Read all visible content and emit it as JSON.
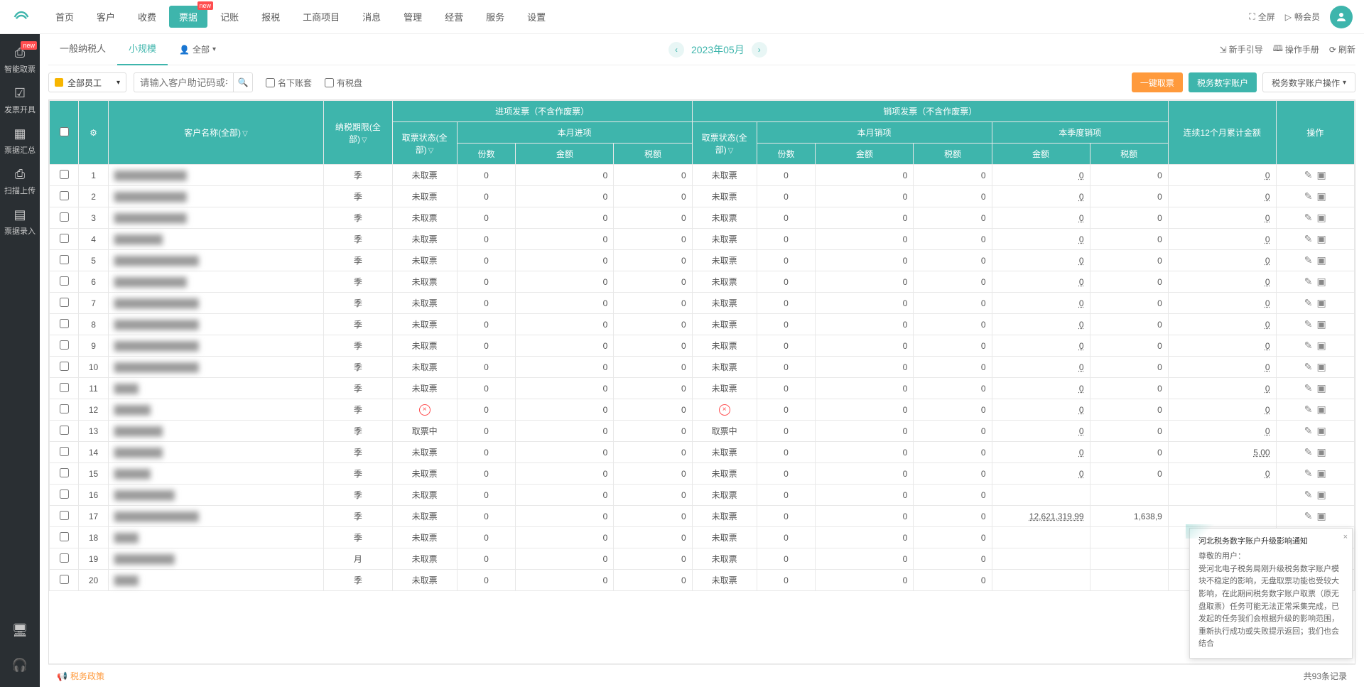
{
  "topnav": {
    "items": [
      "首页",
      "客户",
      "收费",
      "票据",
      "记账",
      "报税",
      "工商项目",
      "消息",
      "管理",
      "经营",
      "服务",
      "设置"
    ],
    "active_index": 3,
    "new_badge_indexes": [
      3
    ],
    "fullscreen": "全屏",
    "member": "畅会员"
  },
  "sidebar": {
    "items": [
      {
        "label": "智能取票",
        "icon": "⎙",
        "new": true
      },
      {
        "label": "发票开具",
        "icon": "☑"
      },
      {
        "label": "票据汇总",
        "icon": "▦"
      },
      {
        "label": "扫描上传",
        "icon": "⎙"
      },
      {
        "label": "票据录入",
        "icon": "▤"
      }
    ]
  },
  "tabs": {
    "items": [
      "一般纳税人",
      "小规模"
    ],
    "active_index": 1,
    "scope": "全部",
    "period": "2023年05月",
    "right_links": [
      "新手引导",
      "操作手册",
      "刷新"
    ]
  },
  "filters": {
    "employee_select": "全部员工",
    "search_placeholder": "请输入客户助记码或名称",
    "chk1": "名下账套",
    "chk2": "有税盘",
    "btn_fetch": "一键取票",
    "btn_digital": "税务数字账户",
    "btn_ops": "税务数字账户操作"
  },
  "table": {
    "headers": {
      "name": "客户名称(全部)",
      "period": "纳税期限(全部)",
      "in_group": "进项发票（不含作废票）",
      "out_group": "销项发票（不含作废票）",
      "in_status": "取票状态(全部)",
      "month_in": "本月进项",
      "out_status": "取票状态(全部)",
      "month_out": "本月销项",
      "quarter_out": "本季度销项",
      "acc12": "连续12个月累计金额",
      "ops": "操作",
      "count": "份数",
      "amount": "金额",
      "tax": "税额"
    },
    "rows": [
      {
        "idx": 1,
        "name": "████████████",
        "period": "季",
        "in_status": "未取票",
        "in_cnt": 0,
        "in_amt": "0",
        "in_tax": "0",
        "out_status": "未取票",
        "out_cnt": 0,
        "out_amt": "0",
        "out_tax": "0",
        "q_amt": "0",
        "q_tax": "0",
        "acc": "0"
      },
      {
        "idx": 2,
        "name": "████████████",
        "period": "季",
        "in_status": "未取票",
        "in_cnt": 0,
        "in_amt": "0",
        "in_tax": "0",
        "out_status": "未取票",
        "out_cnt": 0,
        "out_amt": "0",
        "out_tax": "0",
        "q_amt": "0",
        "q_tax": "0",
        "acc": "0"
      },
      {
        "idx": 3,
        "name": "████████████",
        "period": "季",
        "in_status": "未取票",
        "in_cnt": 0,
        "in_amt": "0",
        "in_tax": "0",
        "out_status": "未取票",
        "out_cnt": 0,
        "out_amt": "0",
        "out_tax": "0",
        "q_amt": "0",
        "q_tax": "0",
        "acc": "0"
      },
      {
        "idx": 4,
        "name": "████████",
        "period": "季",
        "in_status": "未取票",
        "in_cnt": 0,
        "in_amt": "0",
        "in_tax": "0",
        "out_status": "未取票",
        "out_cnt": 0,
        "out_amt": "0",
        "out_tax": "0",
        "q_amt": "0",
        "q_tax": "0",
        "acc": "0"
      },
      {
        "idx": 5,
        "name": "██████████████",
        "period": "季",
        "in_status": "未取票",
        "in_cnt": 0,
        "in_amt": "0",
        "in_tax": "0",
        "out_status": "未取票",
        "out_cnt": 0,
        "out_amt": "0",
        "out_tax": "0",
        "q_amt": "0",
        "q_tax": "0",
        "acc": "0"
      },
      {
        "idx": 6,
        "name": "████████████",
        "period": "季",
        "in_status": "未取票",
        "in_cnt": 0,
        "in_amt": "0",
        "in_tax": "0",
        "out_status": "未取票",
        "out_cnt": 0,
        "out_amt": "0",
        "out_tax": "0",
        "q_amt": "0",
        "q_tax": "0",
        "acc": "0"
      },
      {
        "idx": 7,
        "name": "██████████████",
        "period": "季",
        "in_status": "未取票",
        "in_cnt": 0,
        "in_amt": "0",
        "in_tax": "0",
        "out_status": "未取票",
        "out_cnt": 0,
        "out_amt": "0",
        "out_tax": "0",
        "q_amt": "0",
        "q_tax": "0",
        "acc": "0"
      },
      {
        "idx": 8,
        "name": "██████████████",
        "period": "季",
        "in_status": "未取票",
        "in_cnt": 0,
        "in_amt": "0",
        "in_tax": "0",
        "out_status": "未取票",
        "out_cnt": 0,
        "out_amt": "0",
        "out_tax": "0",
        "q_amt": "0",
        "q_tax": "0",
        "acc": "0"
      },
      {
        "idx": 9,
        "name": "██████████████",
        "period": "季",
        "in_status": "未取票",
        "in_cnt": 0,
        "in_amt": "0",
        "in_tax": "0",
        "out_status": "未取票",
        "out_cnt": 0,
        "out_amt": "0",
        "out_tax": "0",
        "q_amt": "0",
        "q_tax": "0",
        "acc": "0"
      },
      {
        "idx": 10,
        "name": "██████████████",
        "period": "季",
        "in_status": "未取票",
        "in_cnt": 0,
        "in_amt": "0",
        "in_tax": "0",
        "out_status": "未取票",
        "out_cnt": 0,
        "out_amt": "0",
        "out_tax": "0",
        "q_amt": "0",
        "q_tax": "0",
        "acc": "0"
      },
      {
        "idx": 11,
        "name": "████",
        "period": "季",
        "in_status": "未取票",
        "in_cnt": 0,
        "in_amt": "0",
        "in_tax": "0",
        "out_status": "未取票",
        "out_cnt": 0,
        "out_amt": "0",
        "out_tax": "0",
        "q_amt": "0",
        "q_tax": "0",
        "acc": "0"
      },
      {
        "idx": 12,
        "name": "██████",
        "period": "季",
        "in_status": "ERR",
        "in_cnt": 0,
        "in_amt": "0",
        "in_tax": "0",
        "out_status": "ERR",
        "out_cnt": 0,
        "out_amt": "0",
        "out_tax": "0",
        "q_amt": "0",
        "q_tax": "0",
        "acc": "0"
      },
      {
        "idx": 13,
        "name": "████████",
        "period": "季",
        "in_status": "取票中",
        "in_cnt": 0,
        "in_amt": "0",
        "in_tax": "0",
        "out_status": "取票中",
        "out_cnt": 0,
        "out_amt": "0",
        "out_tax": "0",
        "q_amt": "0",
        "q_tax": "0",
        "acc": "0"
      },
      {
        "idx": 14,
        "name": "████████",
        "period": "季",
        "in_status": "未取票",
        "in_cnt": 0,
        "in_amt": "0",
        "in_tax": "0",
        "out_status": "未取票",
        "out_cnt": 0,
        "out_amt": "0",
        "out_tax": "0",
        "q_amt": "0",
        "q_tax": "0",
        "acc": "5.00"
      },
      {
        "idx": 15,
        "name": "██████",
        "period": "季",
        "in_status": "未取票",
        "in_cnt": 0,
        "in_amt": "0",
        "in_tax": "0",
        "out_status": "未取票",
        "out_cnt": 0,
        "out_amt": "0",
        "out_tax": "0",
        "q_amt": "0",
        "q_tax": "0",
        "acc": "0"
      },
      {
        "idx": 16,
        "name": "██████████",
        "period": "季",
        "in_status": "未取票",
        "in_cnt": 0,
        "in_amt": "0",
        "in_tax": "0",
        "out_status": "未取票",
        "out_cnt": 0,
        "out_amt": "0",
        "out_tax": "0",
        "q_amt": "",
        "q_tax": "",
        "acc": ""
      },
      {
        "idx": 17,
        "name": "██████████████",
        "period": "季",
        "in_status": "未取票",
        "in_cnt": 0,
        "in_amt": "0",
        "in_tax": "0",
        "out_status": "未取票",
        "out_cnt": 0,
        "out_amt": "0",
        "out_tax": "0",
        "q_amt": "12,621,319.99",
        "q_tax": "1,638,9",
        "acc": ""
      },
      {
        "idx": 18,
        "name": "████",
        "period": "季",
        "in_status": "未取票",
        "in_cnt": 0,
        "in_amt": "0",
        "in_tax": "0",
        "out_status": "未取票",
        "out_cnt": 0,
        "out_amt": "0",
        "out_tax": "0",
        "q_amt": "",
        "q_tax": "",
        "acc": ""
      },
      {
        "idx": 19,
        "name": "██████████",
        "period": "月",
        "in_status": "未取票",
        "in_cnt": 0,
        "in_amt": "0",
        "in_tax": "0",
        "out_status": "未取票",
        "out_cnt": 0,
        "out_amt": "0",
        "out_tax": "0",
        "q_amt": "",
        "q_tax": "",
        "acc": ""
      },
      {
        "idx": 20,
        "name": "████",
        "period": "季",
        "in_status": "未取票",
        "in_cnt": 0,
        "in_amt": "0",
        "in_tax": "0",
        "out_status": "未取票",
        "out_cnt": 0,
        "out_amt": "0",
        "out_tax": "0",
        "q_amt": "",
        "q_tax": "",
        "acc": ""
      }
    ]
  },
  "footer": {
    "policy": "税务政策",
    "total": "共93条记录"
  },
  "notif": {
    "title": "河北税务数字账户升级影响通知",
    "greeting": "尊敬的用户：",
    "body": "受河北电子税务局刚升级税务数字账户模块不稳定的影响，无盘取票功能也受较大影响，在此期间税务数字账户取票（原无盘取票）任务可能无法正常采集完成，已发起的任务我们会根据升级的影响范围，重新执行成功或失败提示返回；我们也会结合"
  },
  "colors": {
    "teal": "#3eb5ac",
    "orange": "#ff9a3c",
    "red": "#ff4d4f",
    "sidebar_bg": "#2a2f33"
  }
}
